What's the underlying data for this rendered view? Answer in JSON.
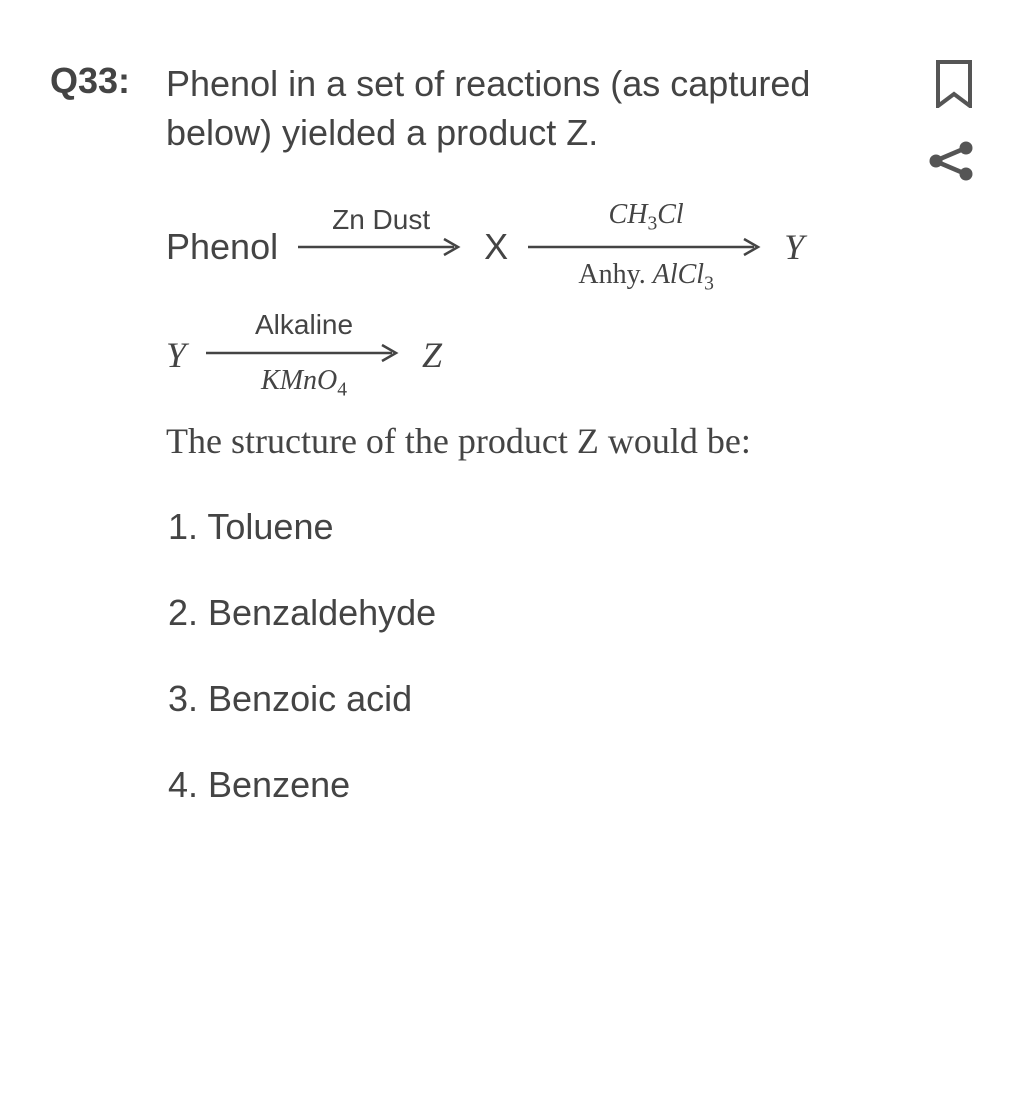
{
  "question": {
    "label": "Q33:",
    "text": "Phenol in a set of reactions (as captured below) yielded a product Z.",
    "followup": "The structure of the product Z would be:"
  },
  "reaction": {
    "start": "Phenol",
    "step1": {
      "top": "Zn Dust",
      "bottom": ""
    },
    "intermediate1": "X",
    "step2": {
      "top_html": "<i>CH</i><sub>3</sub><i>Cl</i>",
      "bottom_html": "Anhy. <i>AlCl</i><sub>3</sub>"
    },
    "intermediate2": "Y",
    "line2_start": "Y",
    "step3": {
      "top": "Alkaline",
      "bottom_html": "<i>KMnO</i><sub>4</sub>"
    },
    "end": "Z"
  },
  "options": [
    "1. Toluene",
    "2. Benzaldehyde",
    "3. Benzoic acid",
    "4. Benzene"
  ],
  "style": {
    "text_color": "#444444",
    "background": "#ffffff",
    "q_fontsize": 36,
    "reagent_fontsize": 28,
    "arrow_stroke": "#444444",
    "arrow_width": 2,
    "bookmark_stroke": "#555555",
    "share_fill": "#555555"
  }
}
